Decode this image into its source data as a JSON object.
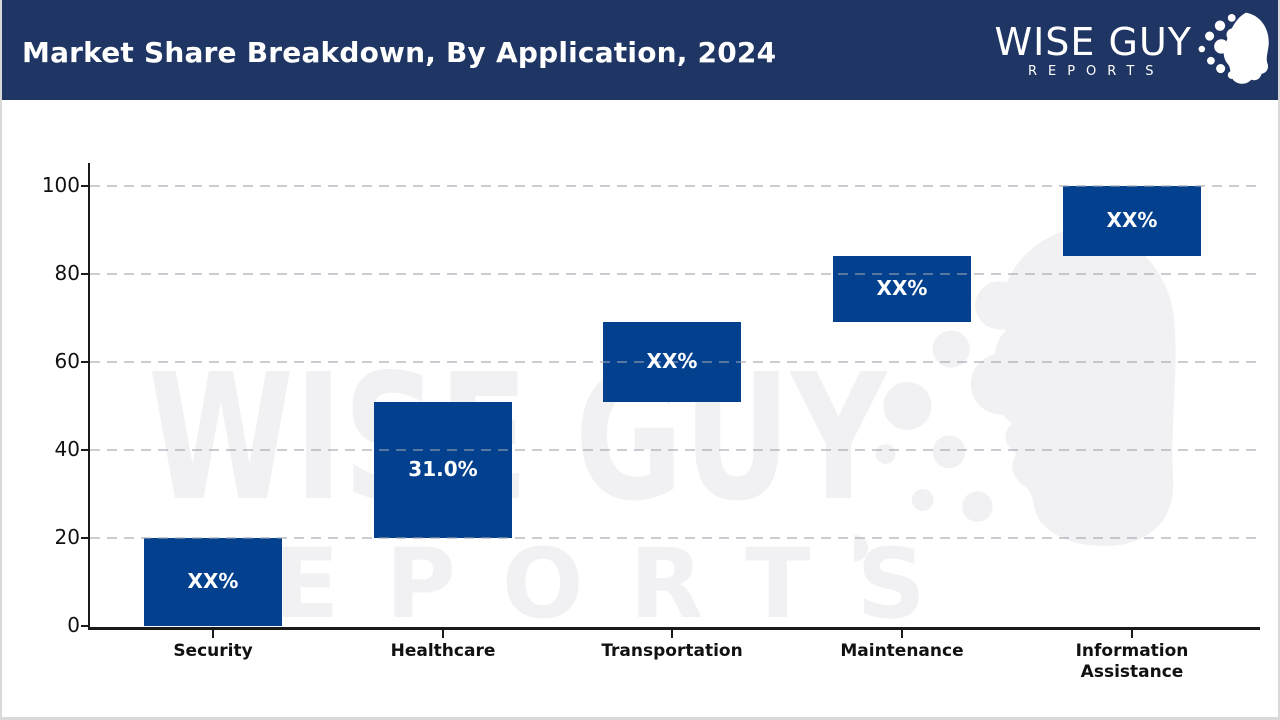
{
  "header": {
    "title": "Market Share Breakdown, By Application, 2024",
    "logo": {
      "line1": "WISE GUY",
      "line2": "REPORTS"
    }
  },
  "watermark": {
    "line1": "WISE GUY",
    "line2": "REPORTS"
  },
  "chart_data": {
    "type": "bar",
    "subtype": "waterfall",
    "title": "Market Share Breakdown, By Application, 2024",
    "categories": [
      "Security",
      "Healthcare",
      "Transportation",
      "Maintenance",
      "Information\nAssistance"
    ],
    "segments": [
      {
        "category": "Security",
        "start": 0,
        "end": 20,
        "label": "XX%"
      },
      {
        "category": "Healthcare",
        "start": 20,
        "end": 51,
        "label": "31.0%"
      },
      {
        "category": "Transportation",
        "start": 51,
        "end": 69,
        "label": "XX%"
      },
      {
        "category": "Maintenance",
        "start": 69,
        "end": 84,
        "label": "XX%"
      },
      {
        "category": "Information Assistance",
        "start": 84,
        "end": 100,
        "label": "XX%"
      }
    ],
    "y_ticks": [
      0,
      20,
      40,
      60,
      80,
      100
    ],
    "ylim": [
      0,
      105
    ],
    "xlabel": "",
    "ylabel": "",
    "legend": "none",
    "grid": "horizontal-dashed",
    "colors": {
      "bar": "#03418f",
      "bar_label_text": "#ffffff",
      "gridline": "#d8d8d8",
      "axis": "#1a1a1a",
      "header_bg": "#1f3564",
      "watermark": "#f1f1f4"
    }
  }
}
